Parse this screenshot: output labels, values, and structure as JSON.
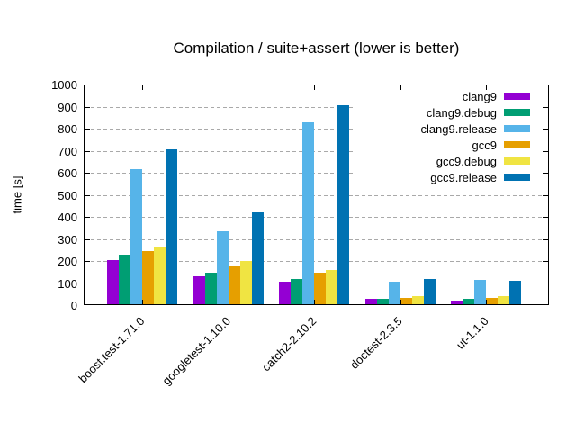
{
  "chart_data": {
    "type": "bar",
    "title": "Compilation / suite+assert (lower is better)",
    "ylabel": "time [s]",
    "xlabel": "",
    "ylim": [
      0,
      1000
    ],
    "ytick_step": 100,
    "grid": true,
    "legend_position": "top-right-inside",
    "categories": [
      "boost.test-1.71.0",
      "googletest-1.10.0",
      "catch2-2.10.2",
      "doctest-2.3.5",
      "ut-1.1.0"
    ],
    "series": [
      {
        "name": "clang9",
        "color": "#9400d3",
        "values": [
          205,
          130,
          106,
          30,
          20
        ]
      },
      {
        "name": "clang9.debug",
        "color": "#009e73",
        "values": [
          227,
          147,
          118,
          27,
          27
        ]
      },
      {
        "name": "clang9.release",
        "color": "#56b4e9",
        "values": [
          615,
          335,
          830,
          105,
          115
        ]
      },
      {
        "name": "gcc9",
        "color": "#e69f00",
        "values": [
          243,
          176,
          148,
          34,
          34
        ]
      },
      {
        "name": "gcc9.debug",
        "color": "#f0e442",
        "values": [
          265,
          202,
          158,
          41,
          41
        ]
      },
      {
        "name": "gcc9.release",
        "color": "#0072b2",
        "values": [
          707,
          422,
          905,
          118,
          110
        ]
      }
    ]
  },
  "colors": {
    "background": "#ffffff",
    "axis": "#000000",
    "grid": "#a9a9a9"
  }
}
